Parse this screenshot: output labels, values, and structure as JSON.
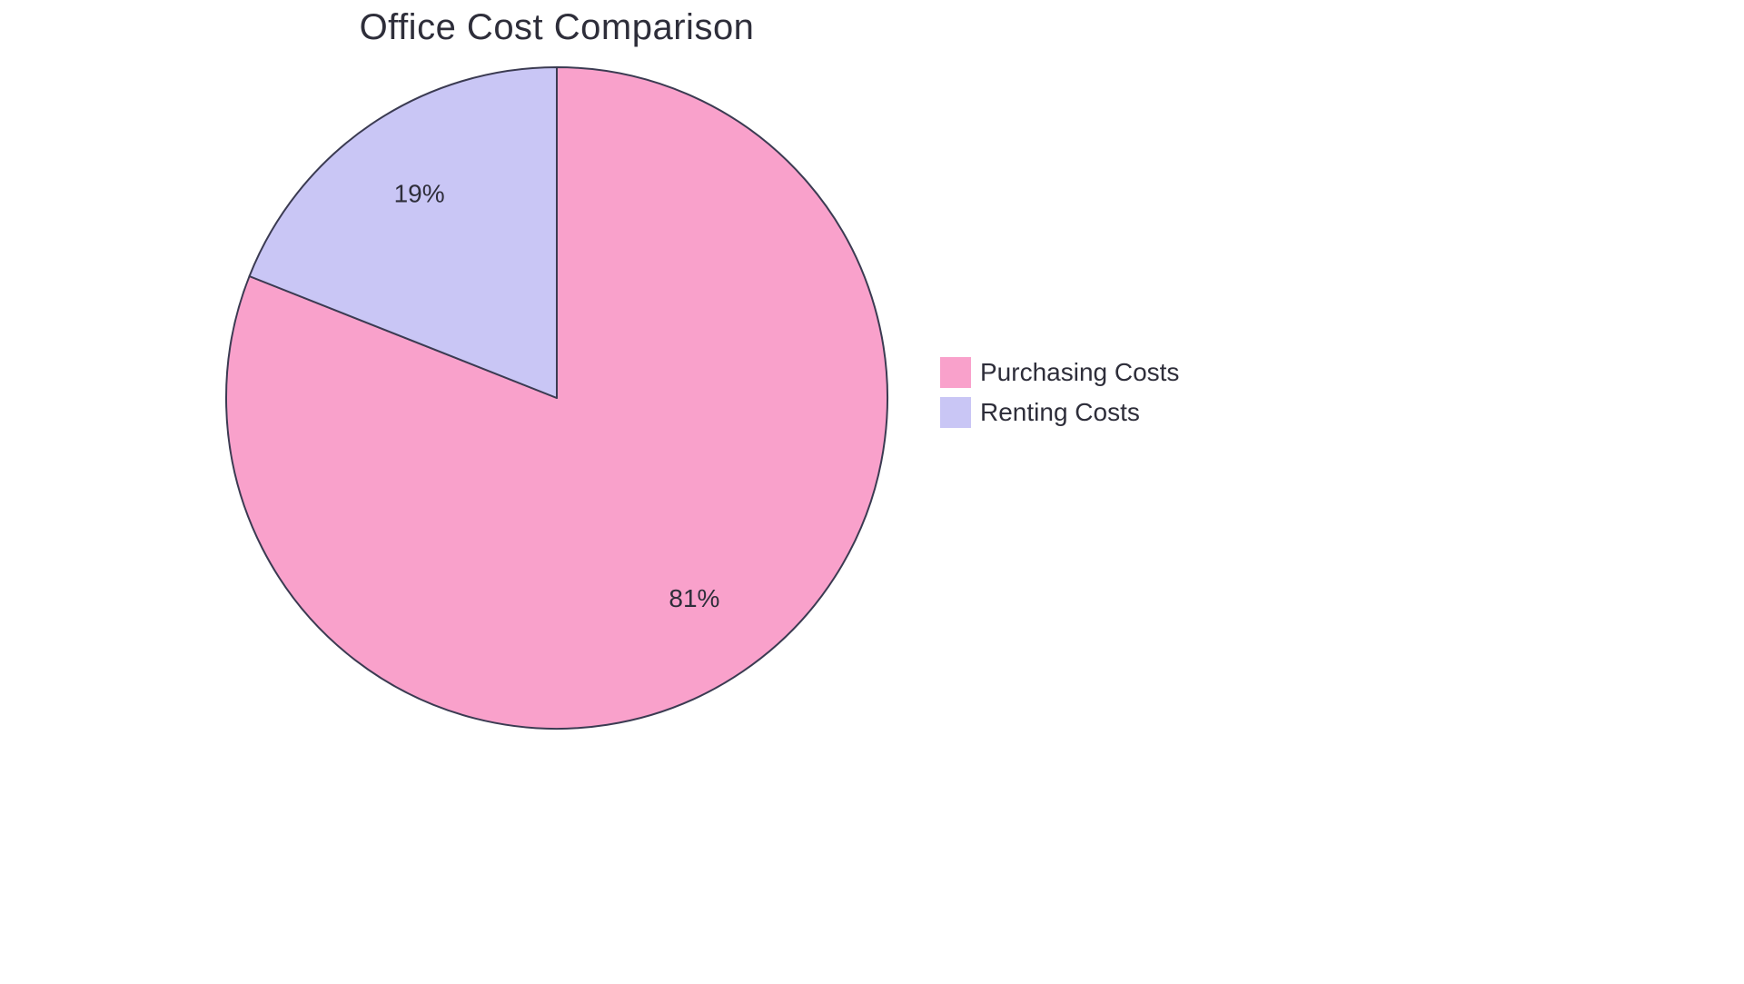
{
  "chart_data": {
    "type": "pie",
    "title": "Office Cost Comparison",
    "labels": [
      "Purchasing Costs",
      "Renting Costs"
    ],
    "values": [
      81,
      19
    ],
    "percent_labels": [
      "81%",
      "19%"
    ],
    "colors": [
      "#F9A1CB",
      "#C9C6F5"
    ],
    "stroke_color": "#3b3b52",
    "label_color": "#2e2e3a",
    "legend_position": "right",
    "start_angle": "top",
    "direction": "clockwise"
  }
}
